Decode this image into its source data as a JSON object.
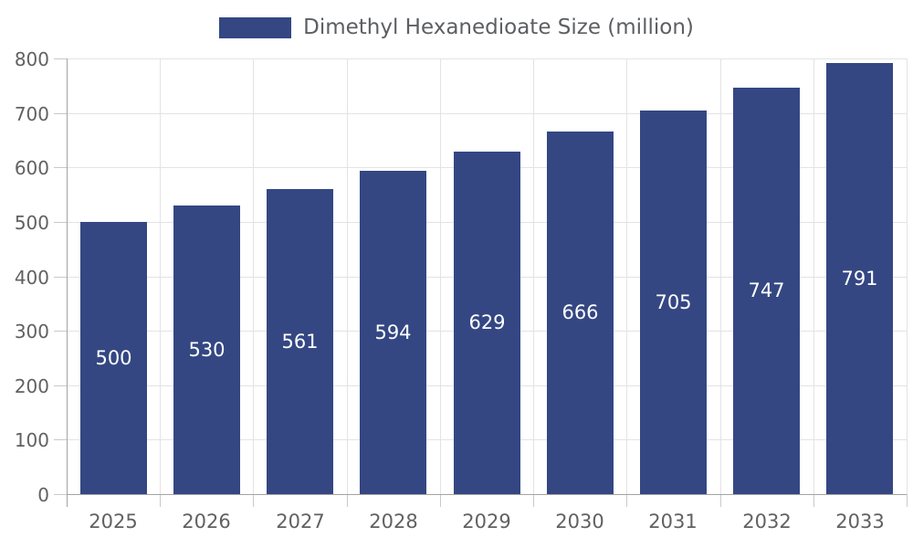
{
  "legend": {
    "label": "Dimethyl Hexanedioate Size (million)"
  },
  "chart_data": {
    "type": "bar",
    "title": "",
    "series_name": "Dimethyl Hexanedioate Size (million)",
    "categories": [
      "2025",
      "2026",
      "2027",
      "2028",
      "2029",
      "2030",
      "2031",
      "2032",
      "2033"
    ],
    "values": [
      500,
      530,
      561,
      594,
      629,
      666,
      705,
      747,
      791
    ],
    "xlabel": "",
    "ylabel": "",
    "ylim": [
      0,
      800
    ],
    "ytick_step": 100,
    "grid": true,
    "legend_position": "top",
    "bar_labels_inside": "middle"
  },
  "colors": {
    "bar": "#344783",
    "bar_label": "#ffffff",
    "grid_line": "#e3e3e3",
    "axis_line": "#a3a3a3",
    "tick_mark": "#c9c9c9",
    "tick_label": "#616161",
    "legend_text": "#5c5e62",
    "background": "#ffffff"
  }
}
